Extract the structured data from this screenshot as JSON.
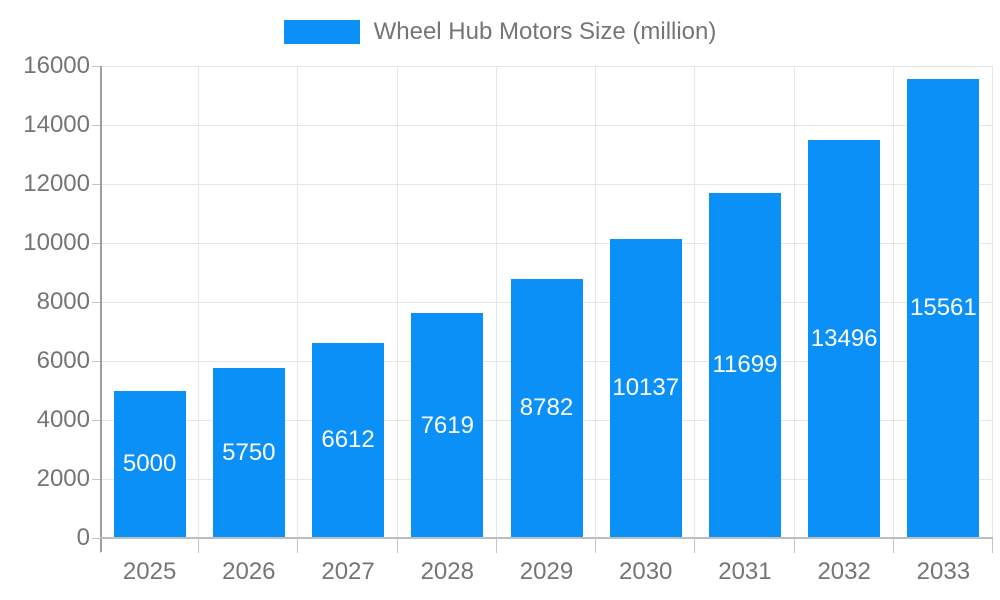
{
  "chart_data": {
    "type": "bar",
    "title": "Wheel Hub Motors Size (million)",
    "legend": {
      "label": "Wheel Hub Motors Size (million)",
      "position": "top"
    },
    "categories": [
      "2025",
      "2026",
      "2027",
      "2028",
      "2029",
      "2030",
      "2031",
      "2032",
      "2033"
    ],
    "values": [
      5000,
      5750,
      6612,
      7619,
      8782,
      10137,
      11699,
      13496,
      15561
    ],
    "xlabel": "",
    "ylabel": "",
    "ylim": [
      0,
      16000
    ],
    "ytick_step": 2000,
    "ytick_labels": [
      "0",
      "2000",
      "4000",
      "6000",
      "8000",
      "10000",
      "12000",
      "14000",
      "16000"
    ],
    "grid": true,
    "legend_position": "top",
    "colors": {
      "bar": "#0b90f8",
      "bar_value_text": "#ffffff",
      "axis_text": "#757575",
      "gridline": "#e6e6e6",
      "y_axis_line": "#9e9e9e",
      "x_axis_line": "#bdbdbd",
      "tick": "#c4c4c4",
      "background": "#ffffff"
    }
  }
}
